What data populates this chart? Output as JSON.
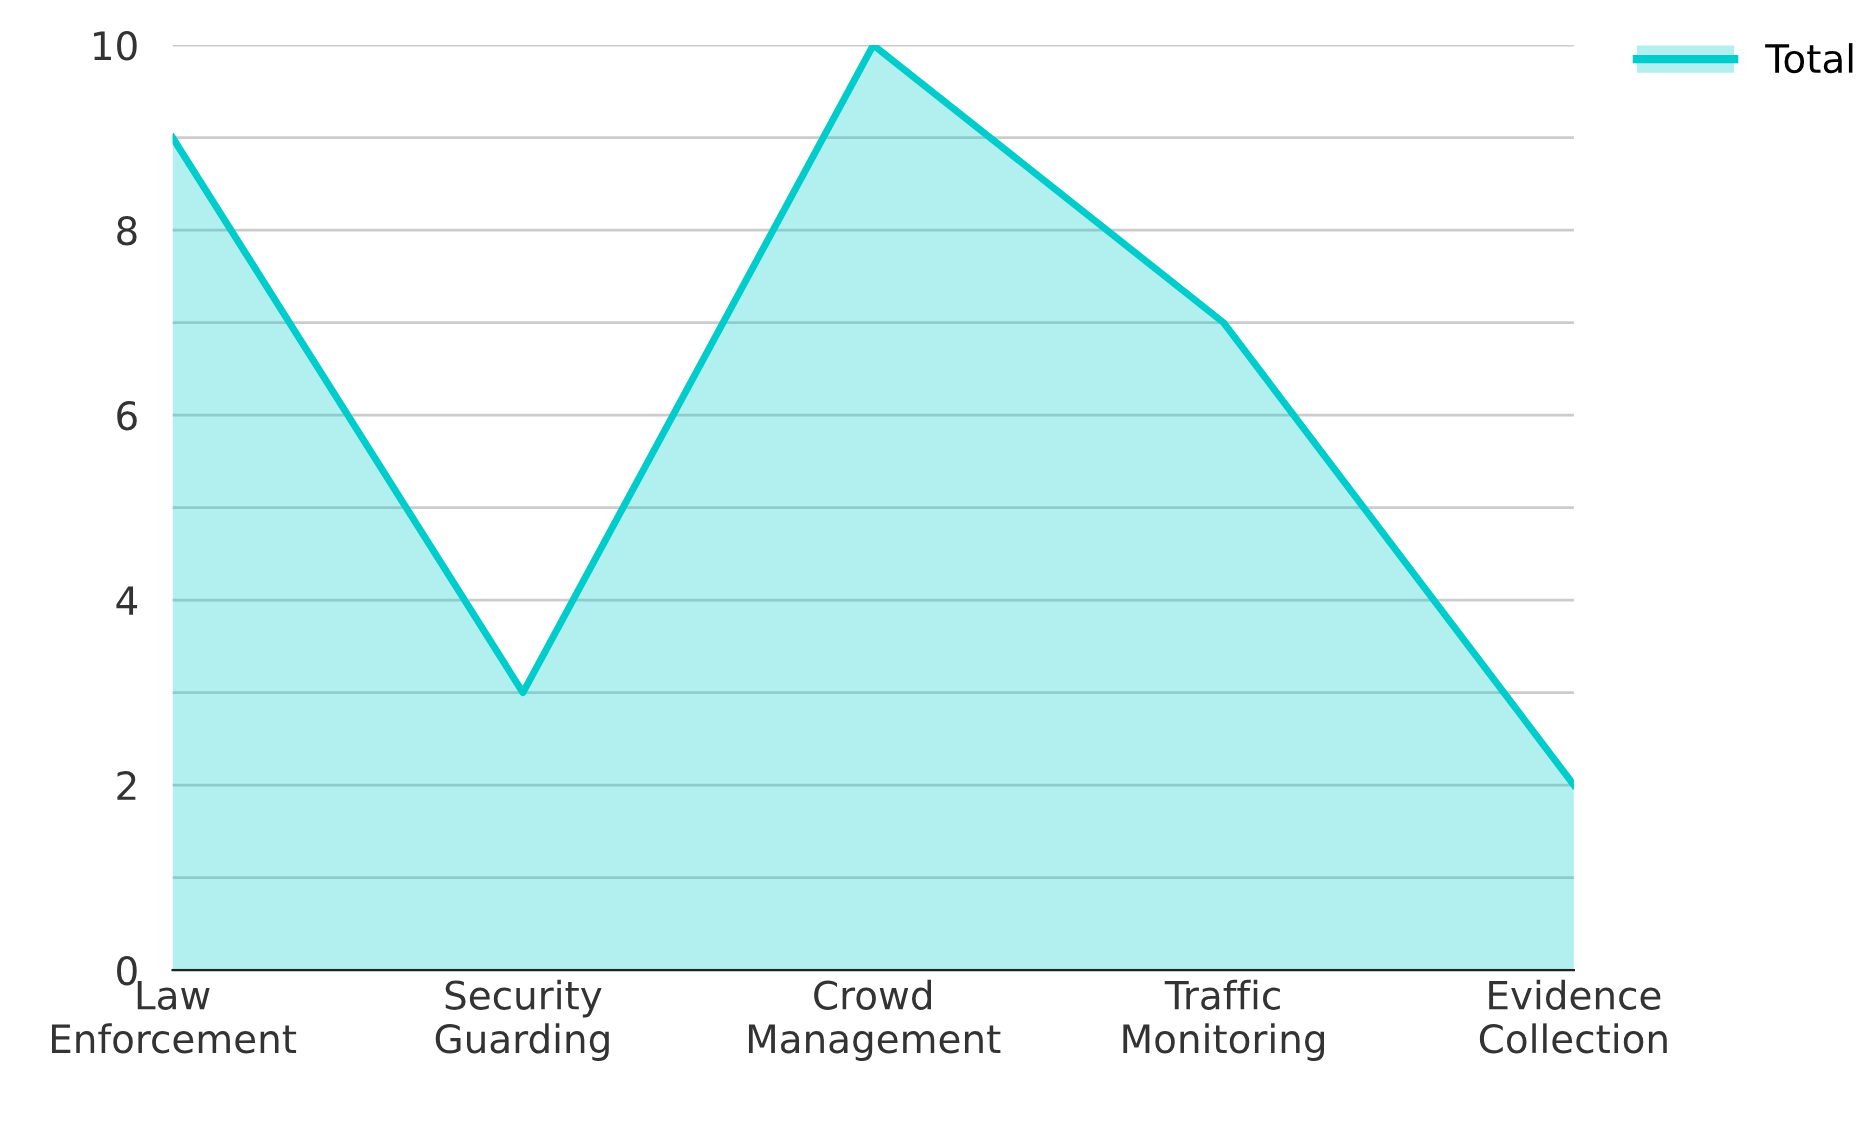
{
  "chart_data": {
    "type": "area",
    "categories": [
      "Law Enforcement",
      "Security Guarding",
      "Crowd Management",
      "Traffic Monitoring",
      "Evidence Collection"
    ],
    "series": [
      {
        "name": "Total",
        "color": "#00cccc",
        "values": [
          9,
          3,
          10,
          7,
          2
        ]
      }
    ],
    "ylim": [
      0,
      10
    ],
    "yticks": [
      0,
      {
        "value": 1,
        "label": null
      },
      2,
      {
        "value": 3,
        "label": null
      },
      4,
      {
        "value": 5,
        "label": null
      },
      6,
      {
        "value": 7,
        "label": null
      },
      8,
      {
        "value": 9,
        "label": null
      },
      10
    ],
    "grid": "y",
    "legend": "top right"
  }
}
